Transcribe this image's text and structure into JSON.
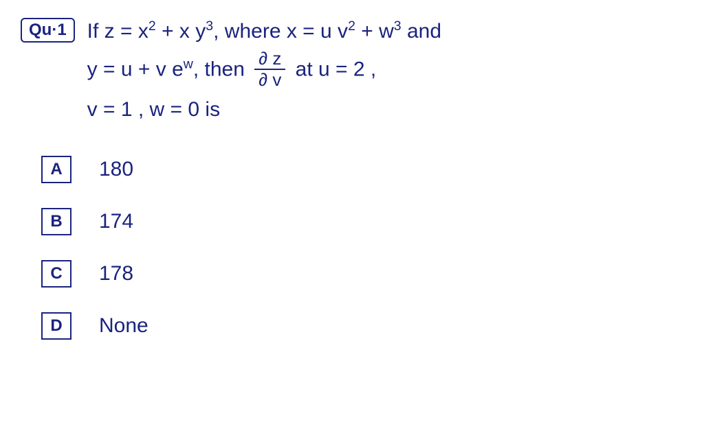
{
  "colors": {
    "ink": "#1a237e",
    "paper": "#ffffff"
  },
  "typography": {
    "family": "Comic Sans MS / handwritten",
    "body_size_pt": 22,
    "label_size_pt": 18
  },
  "question": {
    "label": "Qu·1",
    "line1_a": "If  z = x",
    "line1_b": " + x y",
    "line1_c": ", where  x = u v",
    "line1_d": " + w",
    "line1_e": "  and",
    "line2_a": "y = u + v e",
    "line2_b": ",   then  ",
    "frac_num": "∂ z",
    "frac_den": "∂ v",
    "line2_c": "  at  u = 2 ,",
    "line3": "v = 1 ,   w = 0   is",
    "sup_2": "2",
    "sup_3": "3",
    "sup_w": "w"
  },
  "options": [
    {
      "label": "A",
      "text": "180"
    },
    {
      "label": "B",
      "text": "174"
    },
    {
      "label": "C",
      "text": "178"
    },
    {
      "label": "D",
      "text": "None"
    }
  ]
}
